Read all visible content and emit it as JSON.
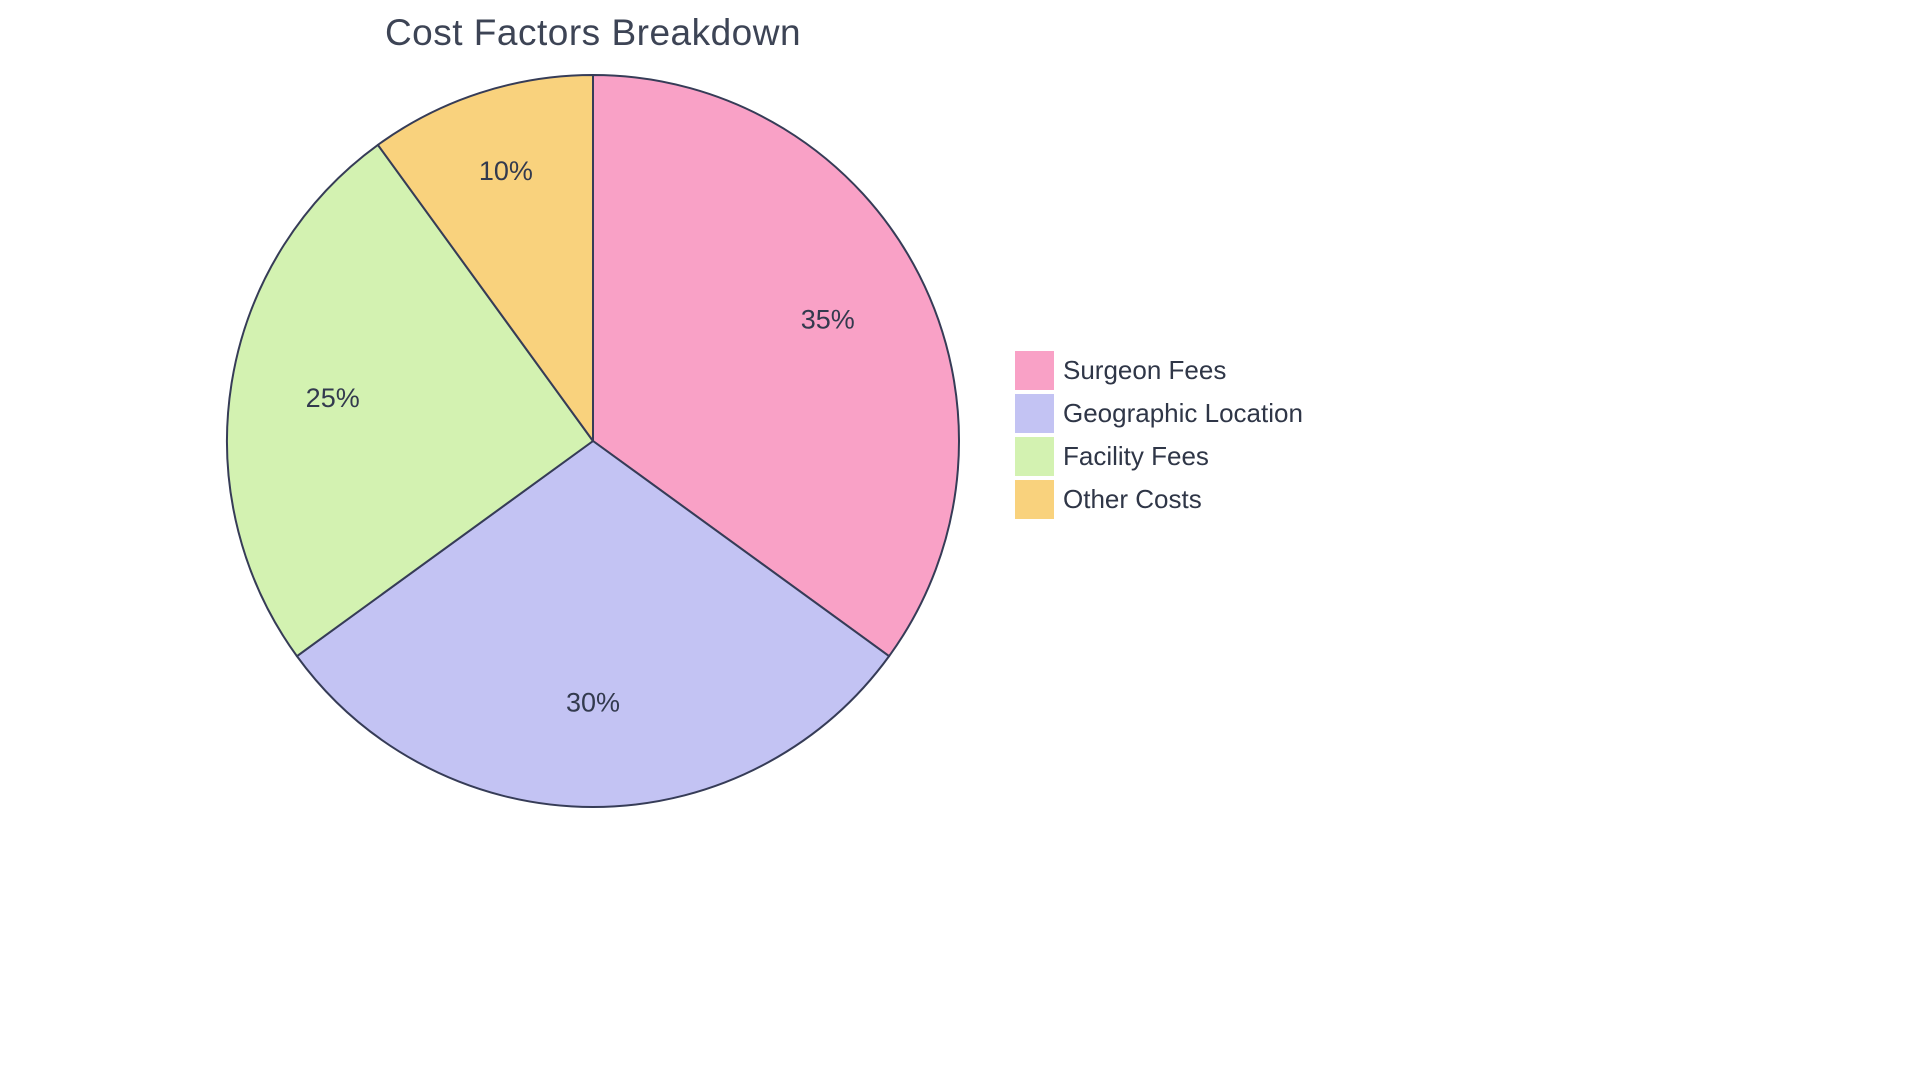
{
  "chart_data": {
    "type": "pie",
    "title": "Cost Factors Breakdown",
    "labels": [
      "Surgeon Fees",
      "Geographic Location",
      "Facility Fees",
      "Other Costs"
    ],
    "values": [
      35,
      30,
      25,
      10
    ],
    "percent_labels": [
      "35%",
      "30%",
      "25%",
      "10%"
    ],
    "colors": [
      "#F9A1C6",
      "#C3C3F3",
      "#D3F2B1",
      "#F9D27D"
    ],
    "stroke_color": "#363c57",
    "start_angle_deg": 0,
    "direction": "clockwise",
    "legend_position": "right"
  }
}
